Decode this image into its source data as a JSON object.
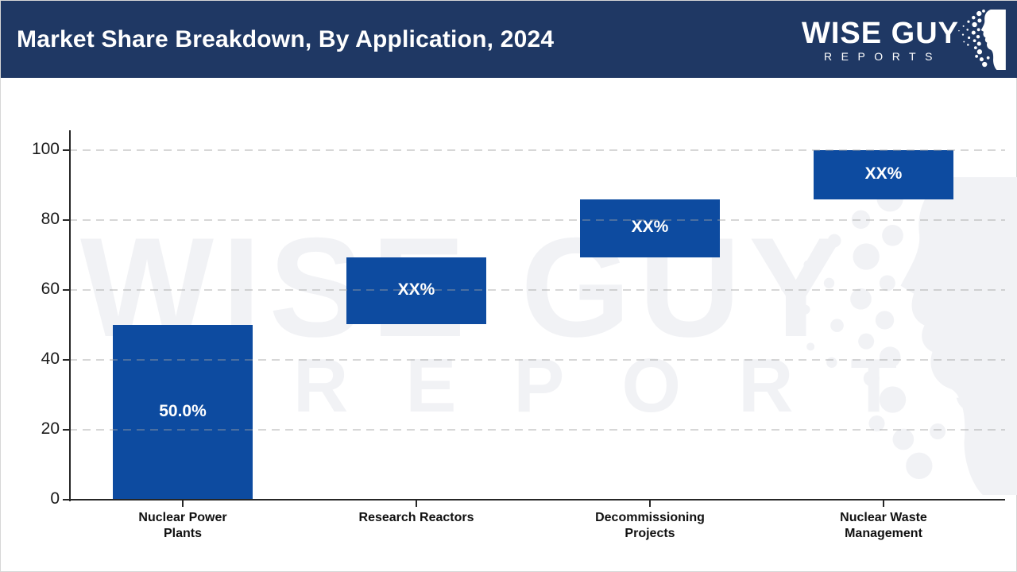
{
  "header": {
    "title": "Market Share Breakdown, By Application, 2024",
    "logo_line1": "WISE GUY",
    "logo_line2": "REPORTS"
  },
  "watermark": {
    "line1": "WISE GUY",
    "line2": "REPORTS"
  },
  "colors": {
    "header_bg": "#1f3864",
    "bar": "#0d4ba0",
    "bar_label": "#ffffff",
    "axis": "#262626",
    "tick_text": "#1a1a1a",
    "grid": "#d0d0d0",
    "watermark": "#f1f2f5"
  },
  "chart_data": {
    "type": "bar",
    "subtype": "waterfall",
    "title": "Market Share Breakdown, By Application, 2024",
    "xlabel": "",
    "ylabel": "",
    "ylim": [
      0,
      105
    ],
    "yticks": [
      0,
      20,
      40,
      60,
      80,
      100
    ],
    "grid": "horizontal dashed",
    "legend": "none",
    "categories": [
      "Nuclear Power Plants",
      "Research Reactors",
      "Decommissioning Projects",
      "Nuclear Waste Management"
    ],
    "category_lines": [
      [
        "Nuclear Power",
        "Plants"
      ],
      [
        "Research Reactors"
      ],
      [
        "Decommissioning",
        "Projects"
      ],
      [
        "Nuclear Waste",
        "Management"
      ]
    ],
    "segments": [
      {
        "category": "Nuclear Power Plants",
        "label": "50.0%",
        "start": 0,
        "end": 50.0
      },
      {
        "category": "Research Reactors",
        "label": "XX%",
        "start": 50.0,
        "end": 69.2
      },
      {
        "category": "Decommissioning Projects",
        "label": "XX%",
        "start": 69.2,
        "end": 85.8
      },
      {
        "category": "Nuclear Waste Management",
        "label": "XX%",
        "start": 85.8,
        "end": 100.0
      }
    ]
  }
}
